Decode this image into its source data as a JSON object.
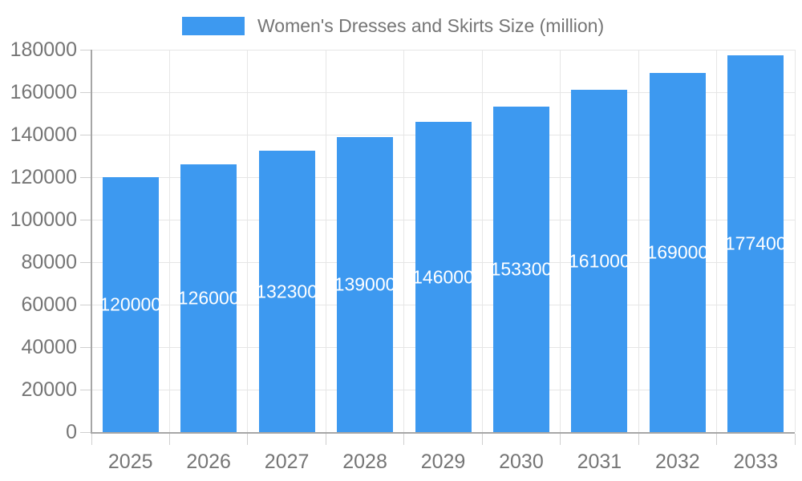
{
  "legend": {
    "label": "Women's Dresses and Skirts Size (million)",
    "swatch_color": "#3D99F0"
  },
  "chart_data": {
    "type": "bar",
    "title": "Women's Dresses and Skirts Size (million)",
    "categories": [
      "2025",
      "2026",
      "2027",
      "2028",
      "2029",
      "2030",
      "2031",
      "2032",
      "2033"
    ],
    "values": [
      120000,
      126000,
      132300,
      139000,
      146000,
      153300,
      161000,
      169000,
      177400
    ],
    "bar_labels": [
      "120000",
      "126000",
      "132300",
      "139000",
      "146000",
      "153300",
      "161000",
      "169000",
      "177400"
    ],
    "xlabel": "",
    "ylabel": "",
    "ylim": [
      0,
      180000
    ],
    "ytick_step": 20000,
    "ytick_labels": [
      "0",
      "20000",
      "40000",
      "60000",
      "80000",
      "100000",
      "120000",
      "140000",
      "160000",
      "180000"
    ],
    "grid": true,
    "legend_position": "top",
    "colors": {
      "bar": "#3D99F0",
      "grid": "#E6E6E6",
      "tick": "#CFCFCF",
      "axis": "#A6A6A6",
      "text": "#757575",
      "bar_label": "#FFFFFF",
      "background": "#FFFFFF"
    }
  }
}
